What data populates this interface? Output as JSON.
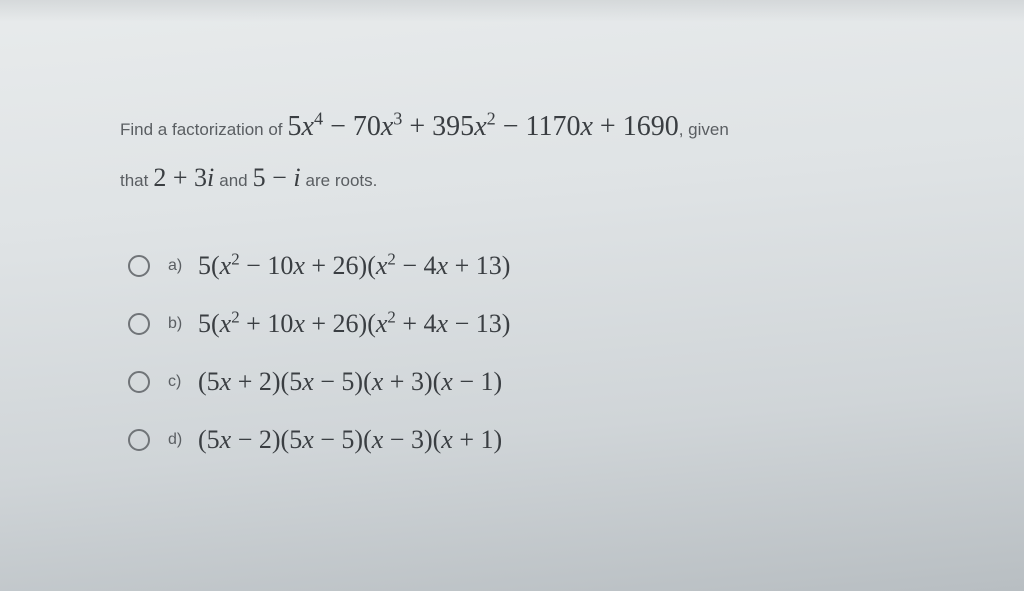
{
  "question": {
    "lead_text": "Find a factorization of",
    "poly_html": "5<span class='it'>x</span><sup>4</sup> − 70<span class='it'>x</span><sup>3</sup> + 395<span class='it'>x</span><sup>2</sup> − 1170<span class='it'>x</span> + 1690",
    "tail_text": ", given",
    "line2_a": "that",
    "root1_html": "2 + 3<span class='it'>i</span>",
    "mid_text": "and",
    "root2_html": "5 − <span class='it'>i</span>",
    "line2_end": "are roots."
  },
  "options": [
    {
      "key": "a)",
      "expr_html": "5(<span class='it'>x</span><sup>2</sup> − 10<span class='it'>x</span> + 26)(<span class='it'>x</span><sup>2</sup> − 4<span class='it'>x</span> + 13)"
    },
    {
      "key": "b)",
      "expr_html": "5(<span class='it'>x</span><sup>2</sup> + 10<span class='it'>x</span> + 26)(<span class='it'>x</span><sup>2</sup> + 4<span class='it'>x</span> − 13)"
    },
    {
      "key": "c)",
      "expr_html": "(5<span class='it'>x</span> + 2)(5<span class='it'>x</span> − 5)(<span class='it'>x</span> + 3)(<span class='it'>x</span> − 1)"
    },
    {
      "key": "d)",
      "expr_html": "(5<span class='it'>x</span> − 2)(5<span class='it'>x</span> − 5)(<span class='it'>x</span> − 3)(<span class='it'>x</span> + 1)"
    }
  ],
  "colors": {
    "text": "#3a3e42",
    "label": "#5a5e62",
    "radio_border": "#707478"
  }
}
